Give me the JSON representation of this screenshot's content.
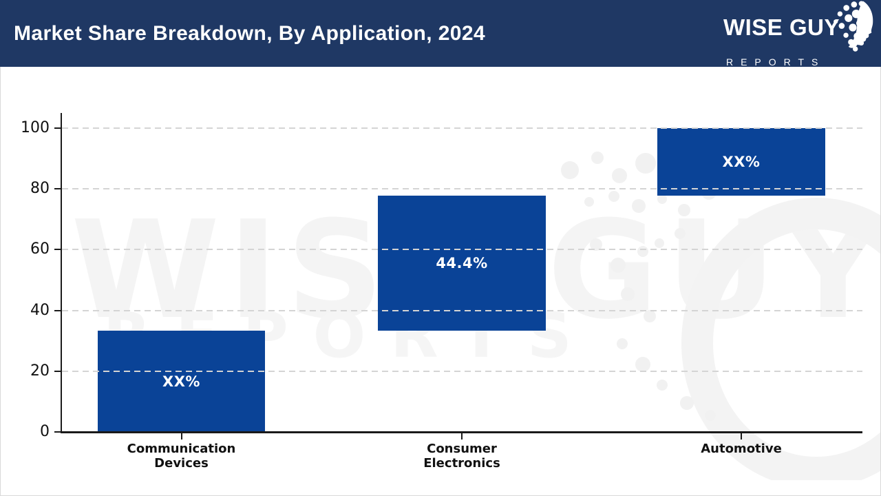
{
  "header": {
    "title": "Market Share Breakdown, By Application, 2024",
    "logo": {
      "name": "WISE GUY",
      "sub": "REPORTS"
    }
  },
  "watermark": {
    "big": "WISE GUY",
    "sub": "REPORTS"
  },
  "chart_data": {
    "type": "bar",
    "subtype": "waterfall",
    "title": "Market Share Breakdown, By Application, 2024",
    "categories": [
      "Communication\nDevices",
      "Consumer\nElectronics",
      "Automotive"
    ],
    "segments": [
      {
        "category": "Communication Devices",
        "start": 0,
        "end": 33.3,
        "label": "XX%"
      },
      {
        "category": "Consumer Electronics",
        "start": 33.3,
        "end": 77.7,
        "label": "44.4%"
      },
      {
        "category": "Automotive",
        "start": 77.7,
        "end": 100,
        "label": "XX%"
      }
    ],
    "xlabel": "",
    "ylabel": "",
    "yticks": [
      0,
      20,
      40,
      60,
      80,
      100
    ],
    "ylim": [
      0,
      105
    ],
    "grid": "horizontal-dashed",
    "legend": "none",
    "colors": {
      "bar": "#0a4397",
      "bar_label": "#ffffff",
      "axis": "#1a1a1a",
      "grid": "#d4d4d4",
      "header_bg": "#1f3864",
      "title_text": "#ffffff",
      "watermark": "#f4f4f4"
    }
  }
}
